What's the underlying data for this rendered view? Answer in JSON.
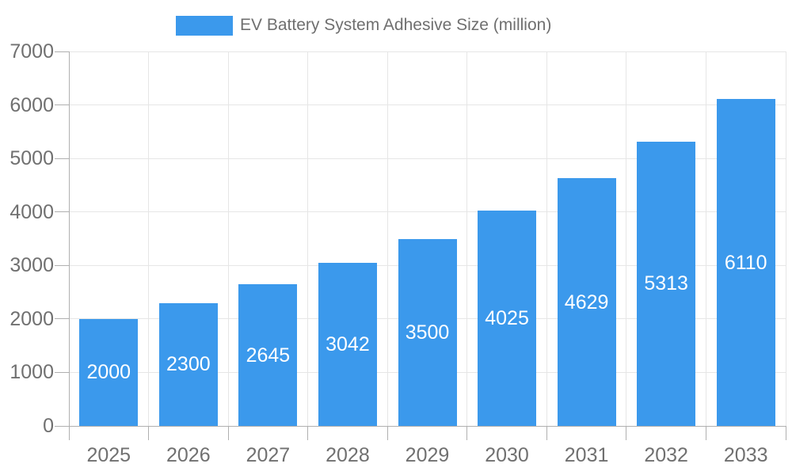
{
  "legend": {
    "label": "EV Battery System Adhesive Size (million)"
  },
  "colors": {
    "bar": "#3b99ec",
    "grid": "#e6e6e6",
    "axis_line": "#b0b0b0",
    "axis_text": "#707070",
    "bar_label_text": "#ffffff",
    "background": "#ffffff"
  },
  "chart_data": {
    "type": "bar",
    "title": "EV Battery System Adhesive Size (million)",
    "categories": [
      "2025",
      "2026",
      "2027",
      "2028",
      "2029",
      "2030",
      "2031",
      "2032",
      "2033"
    ],
    "values": [
      2000,
      2300,
      2645,
      3042,
      3500,
      4025,
      4629,
      5313,
      6110
    ],
    "series_name": "EV Battery System Adhesive Size (million)",
    "xlabel": "",
    "ylabel": "",
    "ylim": [
      0,
      7000
    ],
    "yticks": [
      0,
      1000,
      2000,
      3000,
      4000,
      5000,
      6000,
      7000
    ],
    "grid": true,
    "legend_position": "top",
    "value_labels": "inside-center"
  }
}
